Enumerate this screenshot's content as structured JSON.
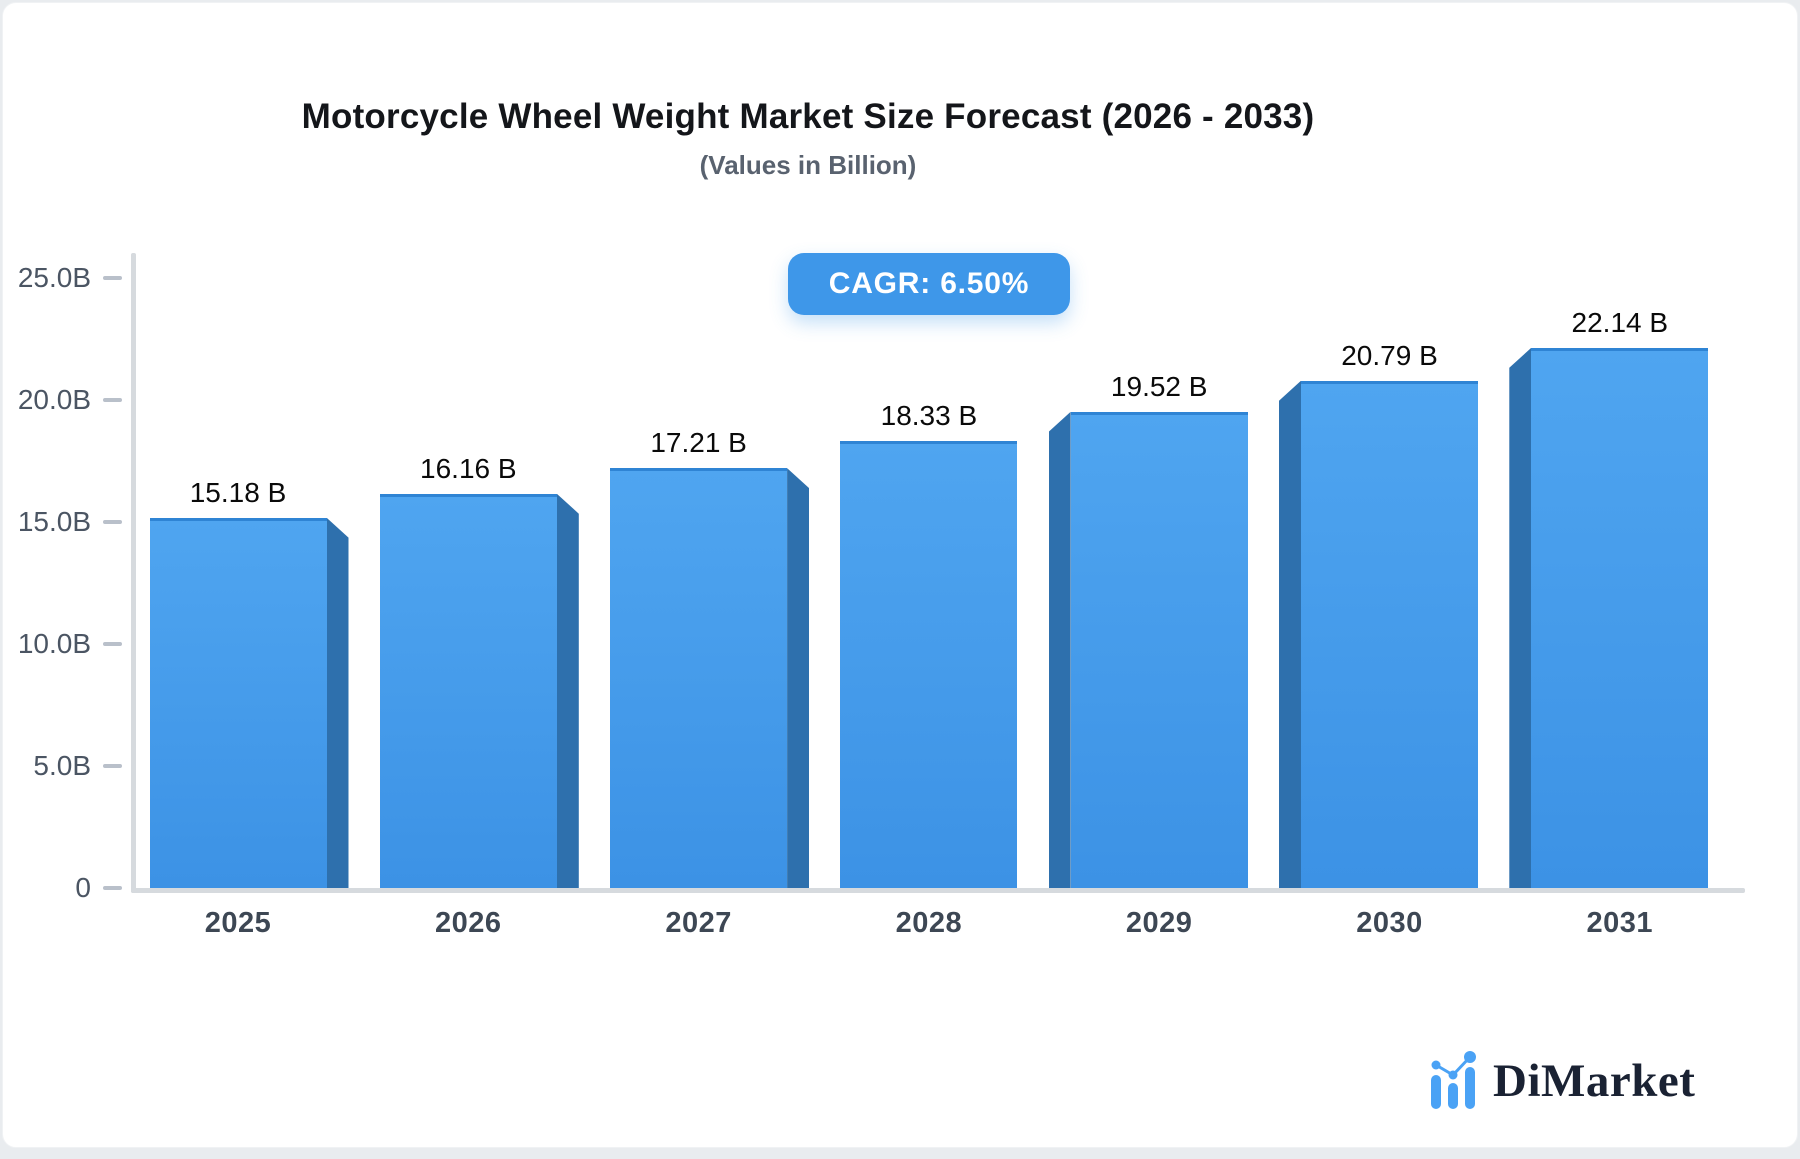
{
  "chart_data": {
    "type": "bar",
    "title": "Motorcycle Wheel Weight Market Size Forecast (2026 - 2033)",
    "subtitle": "(Values in Billion)",
    "cagr_label": "CAGR: 6.50%",
    "categories": [
      "2025",
      "2026",
      "2027",
      "2028",
      "2029",
      "2030",
      "2031"
    ],
    "values": [
      15.18,
      16.16,
      17.21,
      18.33,
      19.52,
      20.79,
      22.14
    ],
    "value_labels": [
      "15.18 B",
      "16.16 B",
      "17.21 B",
      "18.33 B",
      "19.52 B",
      "20.79 B",
      "22.14 B"
    ],
    "xlabel": "",
    "ylabel": "",
    "ylim": [
      0,
      25
    ],
    "y_ticks": [
      {
        "value": 25,
        "label": "25.0B"
      },
      {
        "value": 20,
        "label": "20.0B"
      },
      {
        "value": 15,
        "label": "15.0B"
      },
      {
        "value": 10,
        "label": "10.0B"
      },
      {
        "value": 5,
        "label": "5.0B"
      },
      {
        "value": 0,
        "label": "0"
      }
    ],
    "grid": false,
    "legend": false,
    "colors": {
      "bar_face_top": "#4fa5f0",
      "bar_face_bottom": "#3c92e5",
      "bar_top_edge": "#2f84d4",
      "bar_side": "#2e70ad",
      "axis_line": "#d6dade",
      "tick_mark": "#b9c0ca",
      "badge_bg": "#3e97e9",
      "badge_text": "#ffffff",
      "logo_blue": "#4aa2f5"
    }
  },
  "branding": {
    "logo_text": "DiMarket",
    "logo_icon": "bar-chart-logo-icon"
  }
}
